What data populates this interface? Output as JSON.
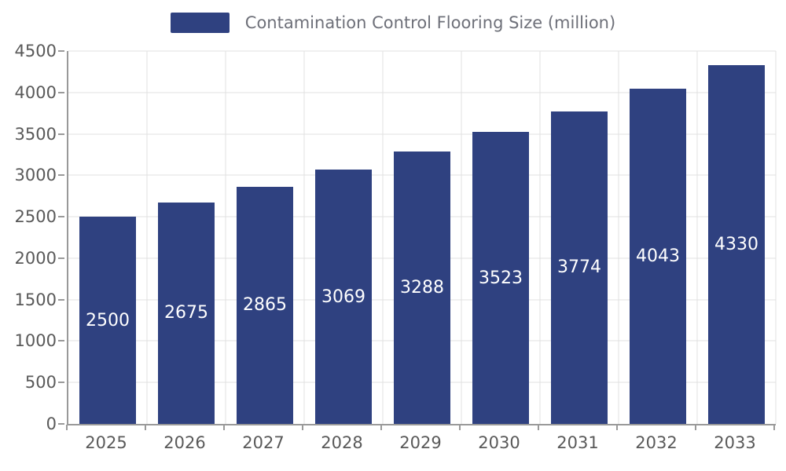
{
  "chart_data": {
    "type": "bar",
    "title": "Contamination Control Flooring Size (million)",
    "categories": [
      "2025",
      "2026",
      "2027",
      "2028",
      "2029",
      "2030",
      "2031",
      "2032",
      "2033"
    ],
    "values": [
      2500,
      2675,
      2865,
      3069,
      3288,
      3523,
      3774,
      4043,
      4330
    ],
    "xlabel": "",
    "ylabel": "",
    "ylim": [
      0,
      4500
    ],
    "yticks": [
      0,
      500,
      1000,
      1500,
      2000,
      2500,
      3000,
      3500,
      4000,
      4500
    ],
    "grid": true,
    "legend_position": "top",
    "bar_labels_inside": true,
    "colors": {
      "bar": "#2f4180",
      "bar_label": "#ffffff",
      "axis_text": "#595959",
      "legend_text": "#6e7079",
      "gridline": "#e0e0e0",
      "axis_line": "#999999"
    }
  }
}
